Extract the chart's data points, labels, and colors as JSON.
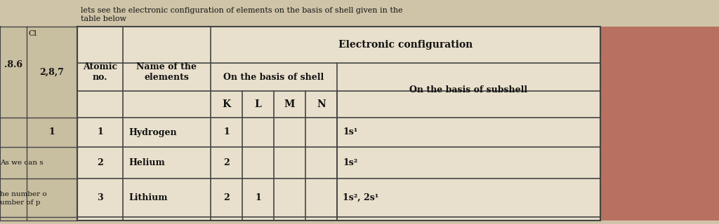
{
  "title_line1": "lets see the electronic configuration of elements on the basis of shell given in the",
  "title_line2": "table below",
  "left_col1_label": ".8.6",
  "left_col2_label": "2,8,7",
  "left_col3_label": "1",
  "left_side_texts": [
    "As we can s",
    "he number o",
    "umber of p"
  ],
  "header_atomic": "Atomic\nno.",
  "header_name": "Name of the\nelements",
  "header_ec": "Electronic configuration",
  "header_shell": "On the basis of shell",
  "header_subshell": "On the basis of subshell",
  "shell_cols": [
    "K",
    "L",
    "M",
    "N"
  ],
  "data_rows": [
    [
      "1",
      "Hydrogen",
      "1",
      "",
      "",
      "",
      "1s¹"
    ],
    [
      "2",
      "Helium",
      "2",
      "",
      "",
      "",
      "1s²"
    ],
    [
      "3",
      "Lithium",
      "2",
      "1",
      "",
      "",
      "1s², 2s¹"
    ]
  ],
  "bg_color": "#cfc4a8",
  "table_bg": "#e8e0cc",
  "left_panel_bg": "#c8bea0",
  "text_color": "#111111",
  "border_color": "#444444",
  "floral_color": "#b87060"
}
